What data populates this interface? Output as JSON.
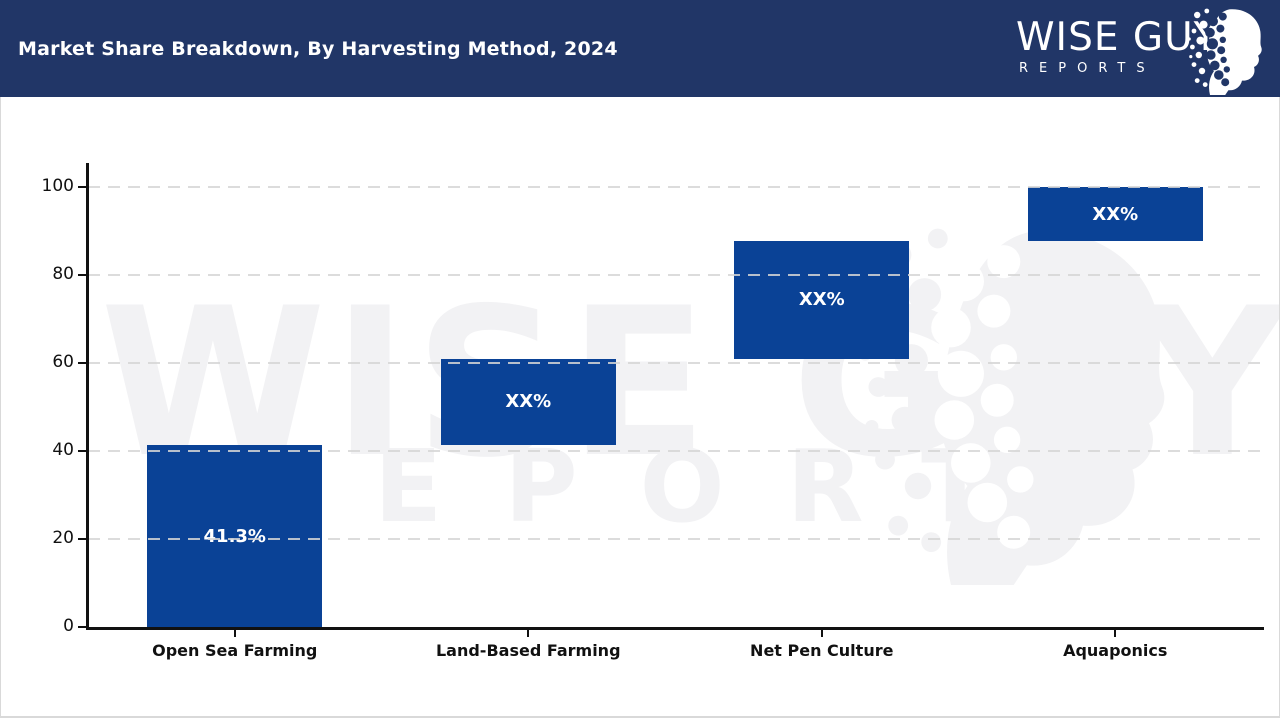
{
  "header": {
    "title": "Market Share Breakdown, By Harvesting Method, 2024",
    "bg_color": "#213667",
    "logo": {
      "wordmark": "WISE GUY",
      "subtext": "REPORTS"
    }
  },
  "watermark": {
    "line1": "WISE GUY",
    "line2": "REPORTS"
  },
  "chart_data": {
    "type": "bar",
    "subtype": "waterfall",
    "title": "Market Share Breakdown, By Harvesting Method, 2024",
    "xlabel": "",
    "ylabel": "",
    "ylim": [
      0,
      105
    ],
    "yticks": [
      0,
      20,
      40,
      60,
      80,
      100
    ],
    "grid": "horizontal-dashed",
    "legend": "none",
    "bar_color": "#0a4296",
    "bar_label_color": "#ffffff",
    "categories": [
      "Open Sea Farming",
      "Land-Based Farming",
      "Net Pen Culture",
      "Aquaponics"
    ],
    "segments": [
      {
        "category": "Open Sea Farming",
        "start": 0,
        "end": 41.3,
        "value": 41.3,
        "label": "41.3%"
      },
      {
        "category": "Land-Based Farming",
        "start": 41.3,
        "end": 61.0,
        "value": 19.7,
        "label": "XX%"
      },
      {
        "category": "Net Pen Culture",
        "start": 61.0,
        "end": 87.7,
        "value": 26.7,
        "label": "XX%"
      },
      {
        "category": "Aquaponics",
        "start": 87.7,
        "end": 100.0,
        "value": 12.3,
        "label": "XX%"
      }
    ]
  }
}
